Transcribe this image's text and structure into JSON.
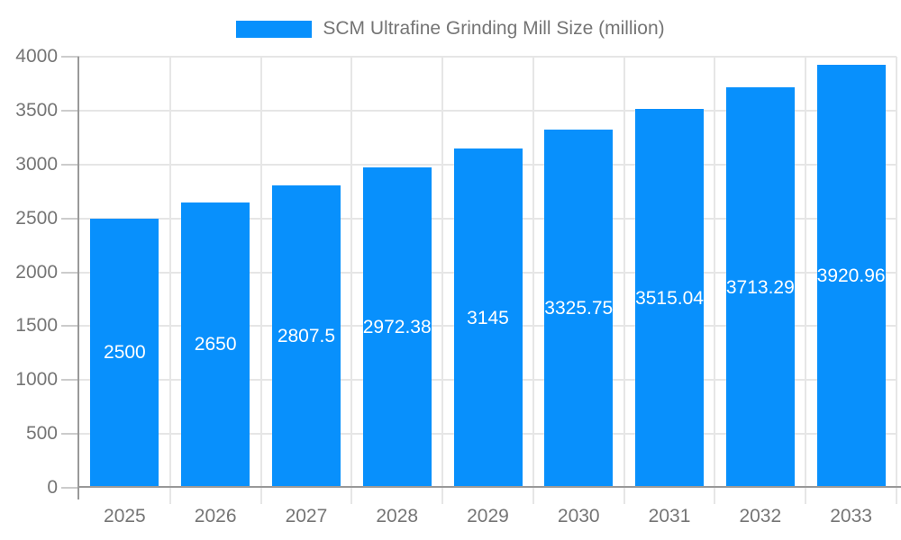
{
  "chart_data": {
    "type": "bar",
    "title": "SCM Ultrafine Grinding Mill Size (million)",
    "categories": [
      "2025",
      "2026",
      "2027",
      "2028",
      "2029",
      "2030",
      "2031",
      "2032",
      "2033"
    ],
    "values": [
      2500,
      2650,
      2807.5,
      2972.38,
      3145,
      3325.75,
      3515.04,
      3713.29,
      3920.96
    ],
    "value_labels": [
      "2500",
      "2650",
      "2807.5",
      "2972.38",
      "3145",
      "3325.75",
      "3515.04",
      "3713.29",
      "3920.96"
    ],
    "yticks": [
      0,
      500,
      1000,
      1500,
      2000,
      2500,
      3000,
      3500,
      4000
    ],
    "ytick_labels": [
      "0",
      "500",
      "1000",
      "1500",
      "2000",
      "2500",
      "3000",
      "3500",
      "4000"
    ],
    "ylim": [
      0,
      4000
    ],
    "xlabel": "",
    "ylabel": "",
    "grid": true,
    "legend_position": "top",
    "bar_color": "#0890fc",
    "bar_label_color": "#ffffff",
    "axis_text_color": "#757575"
  }
}
